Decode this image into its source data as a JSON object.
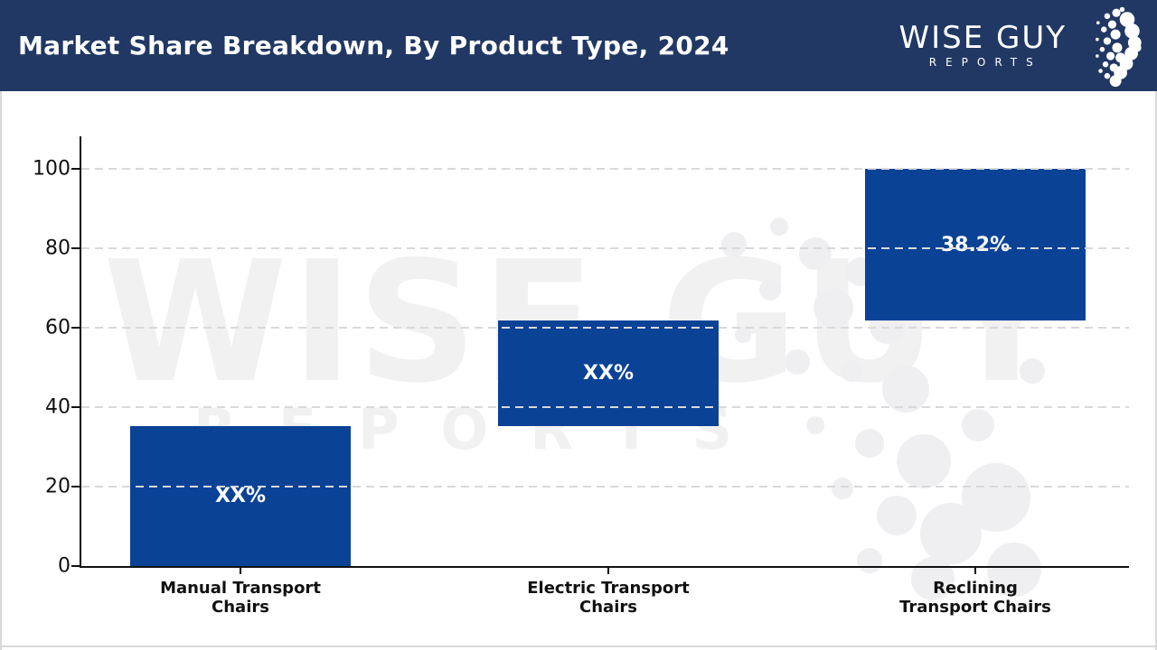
{
  "header": {
    "title": "Market Share Breakdown, By Product Type, 2024",
    "logo": {
      "line1": "WISE GUY",
      "line2": "REPORTS"
    }
  },
  "watermark": {
    "line1": "WISE GUY",
    "line2": "REPORTS"
  },
  "chart_data": {
    "type": "bar",
    "subtype": "waterfall",
    "title": "Market Share Breakdown, By Product Type, 2024",
    "categories": [
      [
        "Manual Transport",
        "Chairs"
      ],
      [
        "Electric Transport",
        "Chairs"
      ],
      [
        "Reclining",
        "Transport Chairs"
      ]
    ],
    "segments": [
      {
        "category": "Manual Transport Chairs",
        "start": 0,
        "end": 35.3,
        "value": 35.3,
        "label": "XX%"
      },
      {
        "category": "Electric Transport Chairs",
        "start": 35.3,
        "end": 61.8,
        "value": 26.5,
        "label": "XX%"
      },
      {
        "category": "Reclining Transport Chairs",
        "start": 61.8,
        "end": 100,
        "value": 38.2,
        "label": "38.2%"
      }
    ],
    "yticks": [
      0,
      20,
      40,
      60,
      80,
      100
    ],
    "ylim": [
      0,
      107
    ],
    "xlabel": "",
    "ylabel": "",
    "grid": "horizontal-dashed",
    "legend": "none",
    "bar_color": "#0a4296",
    "bar_label_color": "#ffffff"
  },
  "colors": {
    "header_bg": "#213864",
    "bar": "#0a4296",
    "grid": "#d9d9d9",
    "axis": "#111111",
    "watermark": "#f1f1f2",
    "frame": "#d9d9d9",
    "title_text": "#ffffff"
  }
}
